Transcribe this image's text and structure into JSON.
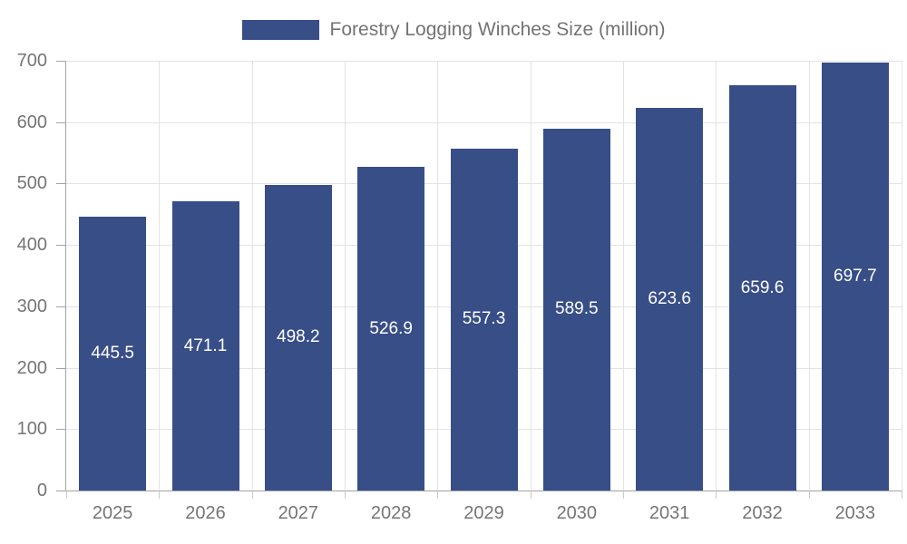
{
  "legend": {
    "label": "Forestry Logging Winches Size (million)"
  },
  "chart_data": {
    "type": "bar",
    "title": "Forestry Logging Winches Size (million)",
    "categories": [
      "2025",
      "2026",
      "2027",
      "2028",
      "2029",
      "2030",
      "2031",
      "2032",
      "2033"
    ],
    "values": [
      445.5,
      471.1,
      498.2,
      526.9,
      557.3,
      589.5,
      623.6,
      659.6,
      697.7
    ],
    "xlabel": "",
    "ylabel": "",
    "ylim": [
      0,
      700
    ],
    "yticks": [
      0,
      100,
      200,
      300,
      400,
      500,
      600,
      700
    ],
    "grid": true,
    "legend_position": "top-center",
    "value_labels": "inside-center"
  },
  "colors": {
    "bar": "#384e87",
    "grid": "#e3e3e3",
    "axis": "#a3a3a3",
    "x_tick_mark": "#c9c9c9",
    "tick_label": "#757575",
    "legend_label": "#737373",
    "value_label": "#ffffff",
    "background": "#ffffff"
  }
}
